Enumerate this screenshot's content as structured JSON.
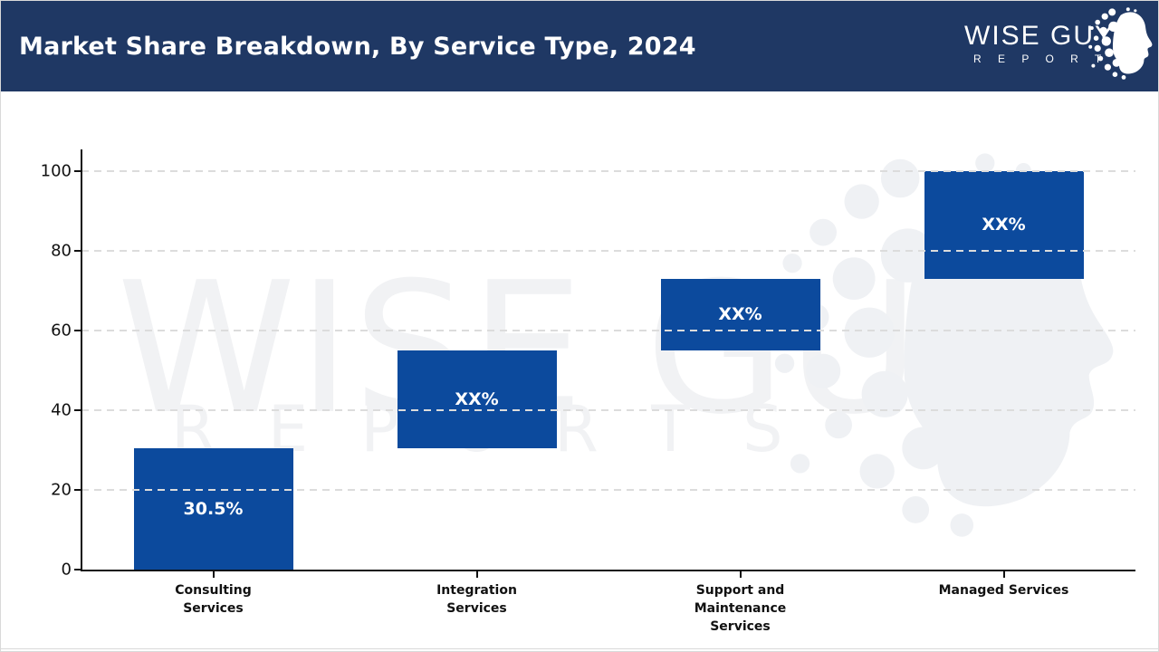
{
  "header": {
    "title": "Market Share Breakdown, By Service Type, 2024",
    "brand": {
      "name": "WISE GUY",
      "sub": "R E P O R T S"
    }
  },
  "watermark": {
    "line1": "WISE GUY",
    "line2": "R E P O R T S"
  },
  "colors": {
    "header_bg": "#1f3864",
    "bar_blue": "#0c4a9d",
    "axis": "#111111",
    "gridline": "#dcdcdc",
    "watermark": "#f1f2f4",
    "page_border": "#d9d9d9"
  },
  "chart_data": {
    "type": "bar",
    "variant": "waterfall",
    "title": "Market Share Breakdown, By Service Type, 2024",
    "categories": [
      "Consulting Services",
      "Integration Services",
      "Support and Maintenance Services",
      "Managed Services"
    ],
    "category_label_lines": [
      [
        "Consulting",
        "Services"
      ],
      [
        "Integration",
        "Services"
      ],
      [
        "Support and",
        "Maintenance",
        "Services"
      ],
      [
        "Managed Services"
      ]
    ],
    "series": [
      {
        "name": "Market share (%)",
        "segments": [
          {
            "category": "Consulting Services",
            "start": 0,
            "end": 30.5,
            "label": "30.5%"
          },
          {
            "category": "Integration Services",
            "start": 30.5,
            "end": 55,
            "label": "XX%"
          },
          {
            "category": "Support and Maintenance Services",
            "start": 55,
            "end": 73,
            "label": "XX%"
          },
          {
            "category": "Managed Services",
            "start": 73,
            "end": 100,
            "label": "XX%"
          }
        ]
      }
    ],
    "xlabel": "",
    "ylabel": "",
    "ylim": [
      0,
      104.5
    ],
    "yticks": [
      0,
      20,
      40,
      60,
      80,
      100
    ],
    "grid": "horizontal-dashed",
    "legend": "none",
    "bar_color": "#0c4a9d",
    "bar_label_color": "#ffffff"
  }
}
